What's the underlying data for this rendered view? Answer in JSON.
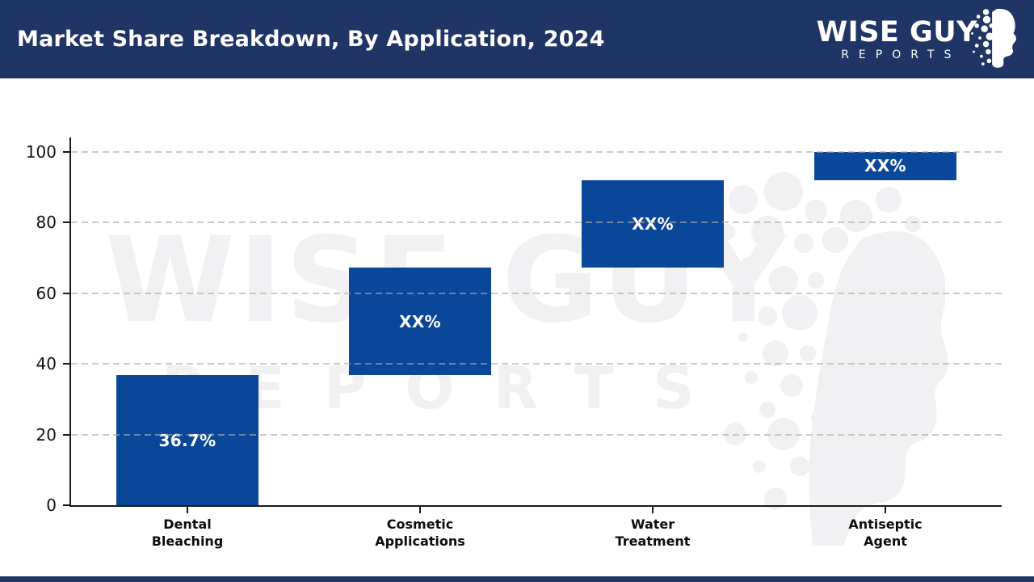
{
  "header": {
    "title": "Market Share Breakdown, By Application, 2024",
    "logo_line1": "WISE GUY",
    "logo_line2": "REPORTS"
  },
  "watermark": {
    "line1": "WISE GUY",
    "line2": "REPORTS"
  },
  "chart_data": {
    "type": "bar",
    "subtype": "waterfall",
    "title": "Market Share Breakdown, By Application, 2024",
    "categories": [
      "Dental Bleaching",
      "Cosmetic Applications",
      "Water Treatment",
      "Antiseptic Agent"
    ],
    "segments": [
      {
        "category": "Dental Bleaching",
        "start": 0,
        "end": 36.7,
        "label": "36.7%"
      },
      {
        "category": "Cosmetic Applications",
        "start": 36.7,
        "end": 67.2,
        "label": "XX%"
      },
      {
        "category": "Water Treatment",
        "start": 67.2,
        "end": 91.9,
        "label": "XX%"
      },
      {
        "category": "Antiseptic Agent",
        "start": 91.9,
        "end": 100,
        "label": "XX%"
      }
    ],
    "xlabel": "",
    "ylabel": "",
    "yticks": [
      0,
      20,
      40,
      60,
      80,
      100
    ],
    "ylim": [
      0,
      104
    ],
    "grid": "horizontal-dashed",
    "legend": "none",
    "colors": {
      "bar": "#0b4798",
      "bar_label": "#ffffff",
      "grid": "#d4d4d4",
      "axis": "#1a1a1a",
      "tick_label": "#111111",
      "header_bg": "#1f3565",
      "watermark": "#f1f1f3"
    }
  }
}
